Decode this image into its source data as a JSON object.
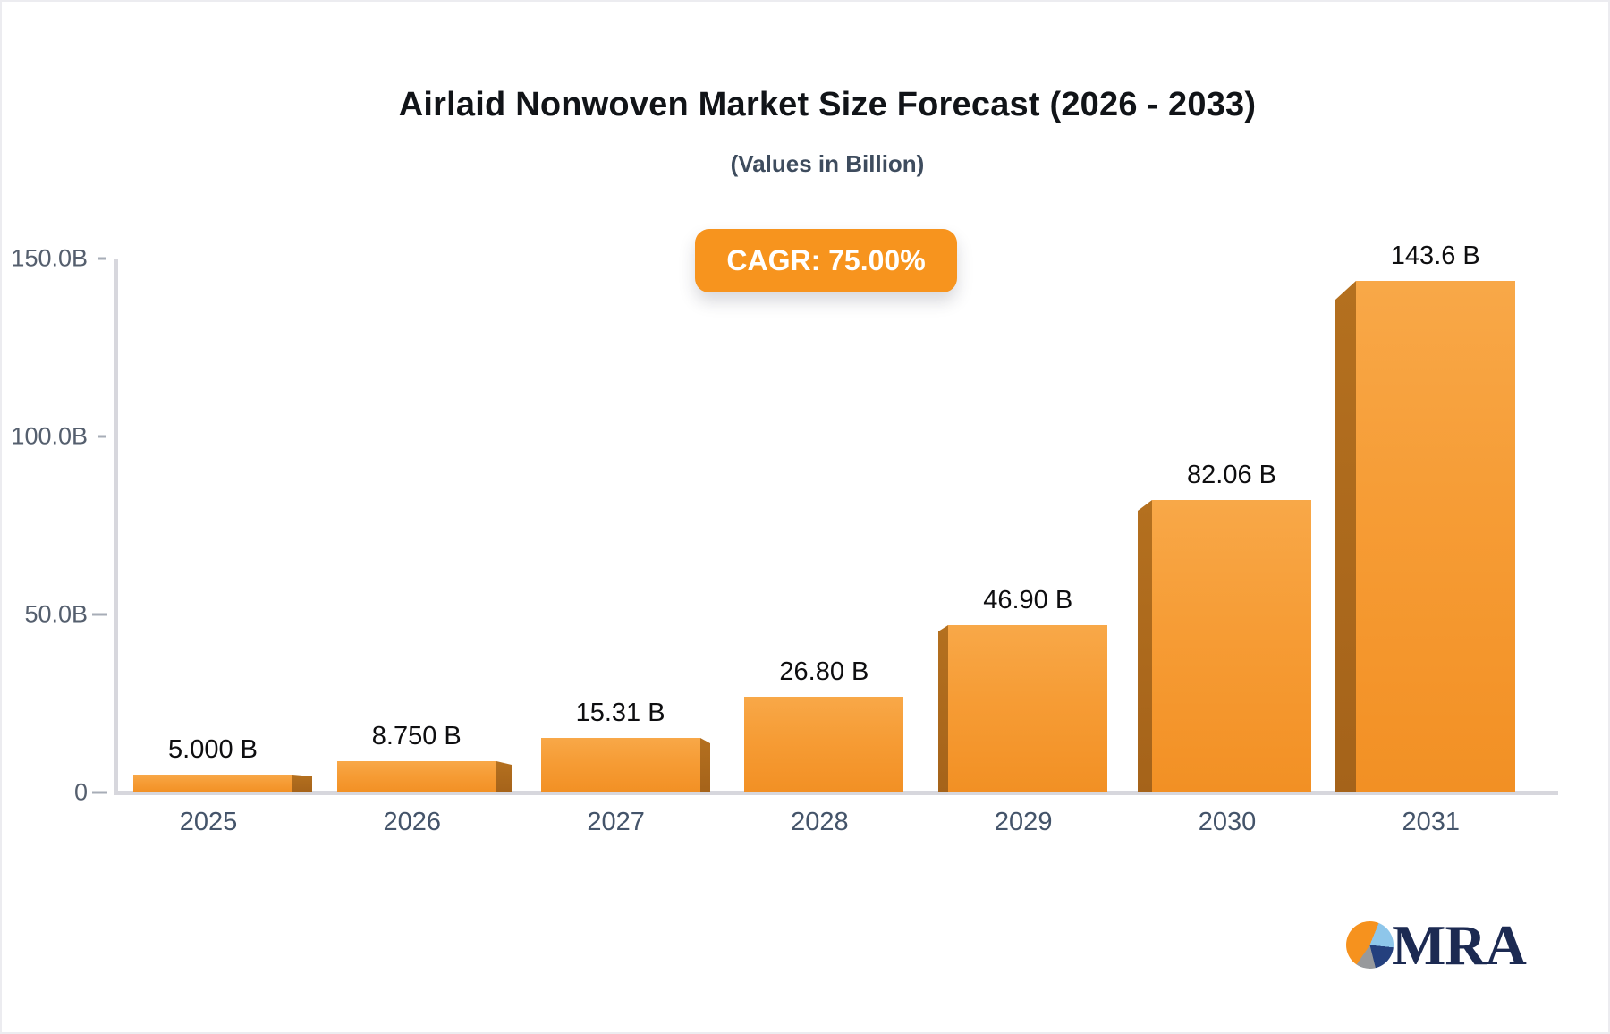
{
  "title": "Airlaid Nonwoven Market Size Forecast (2026 - 2033)",
  "subtitle": "(Values in Billion)",
  "cagr_badge": "CAGR: 75.00%",
  "logo_text": "MRA",
  "colors": {
    "badge_orange": "#f7941e",
    "bar_top": "#f8a848",
    "bar_bottom": "#f29024",
    "bar_side": "#ad671c",
    "axis_gray": "#d7d7dd",
    "tick_text": "#555f6e",
    "xlabel_text": "#44546a",
    "logo_navy": "#1c2a52",
    "logo_lightblue": "#8ec6ea",
    "logo_gray": "#97999c"
  },
  "chart_data": {
    "type": "bar",
    "title": "Airlaid Nonwoven Market Size Forecast (2026 - 2033)",
    "subtitle": "(Values in Billion)",
    "xlabel": "",
    "ylabel": "",
    "categories": [
      "2025",
      "2026",
      "2027",
      "2028",
      "2029",
      "2030",
      "2031"
    ],
    "values": [
      5.0,
      8.75,
      15.31,
      26.8,
      46.9,
      82.06,
      143.6
    ],
    "value_labels": [
      "5.000 B",
      "8.750 B",
      "15.31 B",
      "26.80 B",
      "46.90 B",
      "82.06 B",
      "143.6 B"
    ],
    "y_ticks": [
      {
        "label": "150.0B",
        "value": 150
      },
      {
        "label": "100.0B",
        "value": 100
      },
      {
        "label": "50.0B",
        "value": 50
      },
      {
        "label": "0",
        "value": 0
      }
    ],
    "ylim": [
      0,
      150
    ],
    "grid": "off",
    "legend": "none",
    "annotation": "CAGR: 75.00%",
    "bar_style": "3d-perspective-orange"
  }
}
